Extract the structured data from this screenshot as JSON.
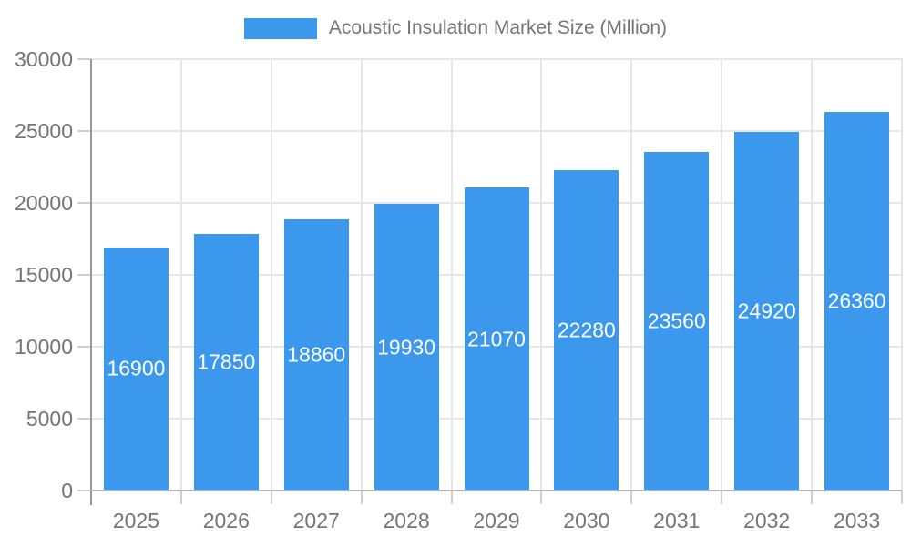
{
  "legend": {
    "label": "Acoustic Insulation Market Size (Million)",
    "swatch_color": "#3B98ED"
  },
  "chart_data": {
    "type": "bar",
    "title": "Acoustic Insulation Market Size (Million)",
    "categories": [
      "2025",
      "2026",
      "2027",
      "2028",
      "2029",
      "2030",
      "2031",
      "2032",
      "2033"
    ],
    "values": [
      16900,
      17850,
      18860,
      19930,
      21070,
      22280,
      23560,
      24920,
      26360
    ],
    "series": [
      {
        "name": "Acoustic Insulation Market Size (Million)",
        "values": [
          16900,
          17850,
          18860,
          19930,
          21070,
          22280,
          23560,
          24920,
          26360
        ]
      }
    ],
    "xlabel": "",
    "ylabel": "",
    "ylim": [
      0,
      30000
    ],
    "yticks": [
      0,
      5000,
      10000,
      15000,
      20000,
      25000,
      30000
    ],
    "grid": true,
    "legend_position": "top",
    "bar_labels_inside": true,
    "colors": {
      "bar": "#3B98ED",
      "bar_label": "#FFFFFF",
      "axis_text": "#757575",
      "grid": "#E6E6E6",
      "y_axis_line": "#999999",
      "x_axis_line": "#B3B3B3",
      "tick": "#CFCFCF",
      "background": "#FFFFFF"
    }
  }
}
